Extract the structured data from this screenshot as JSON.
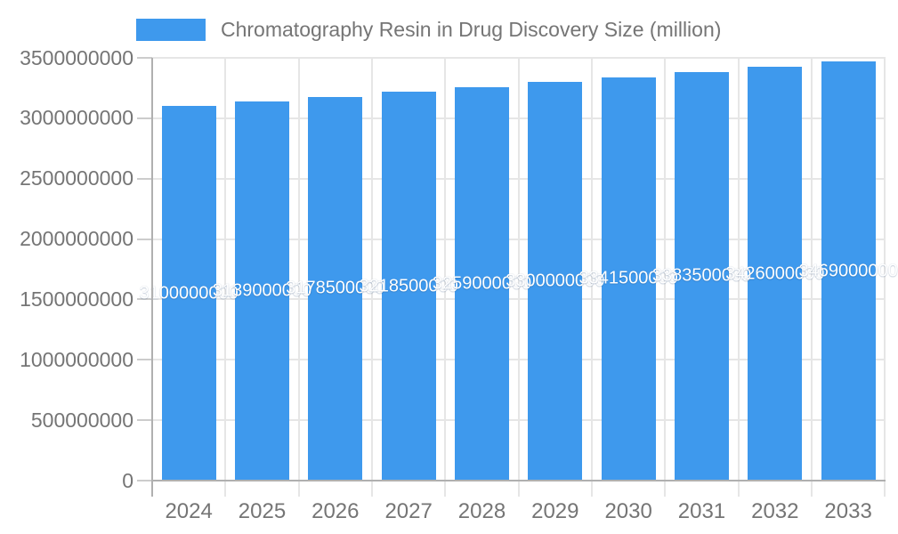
{
  "chart_data": {
    "type": "bar",
    "title": "Chromatography Resin in Drug Discovery Size (million)",
    "legend_position": "top",
    "categories": [
      "2024",
      "2025",
      "2026",
      "2027",
      "2028",
      "2029",
      "2030",
      "2031",
      "2032",
      "2033"
    ],
    "values": [
      3100000000,
      3139000000,
      3178500000,
      3218500000,
      3259000000,
      3300000000,
      3341500000,
      3383500000,
      3426000000,
      3469000000
    ],
    "bar_value_labels": [
      "3100000000",
      "3139000000",
      "3178500000",
      "3218500000",
      "3259000000",
      "3300000000",
      "3341500000",
      "3383500000",
      "3426000000",
      "3469000000"
    ],
    "xlabel": "",
    "ylabel": "",
    "ylim": [
      0,
      3500000000
    ],
    "y_ticks": [
      0,
      500000000,
      1000000000,
      1500000000,
      2000000000,
      2500000000,
      3000000000,
      3500000000
    ],
    "grid": true,
    "colors": {
      "bar": "#3E99ED",
      "title_text": "#757575",
      "axis_text": "#757575",
      "gridline": "#e6e6e6",
      "tick_mark": "#cccccc",
      "axis_line": "#b0b0b0",
      "value_label": "#ffffff",
      "background": "#ffffff"
    }
  }
}
